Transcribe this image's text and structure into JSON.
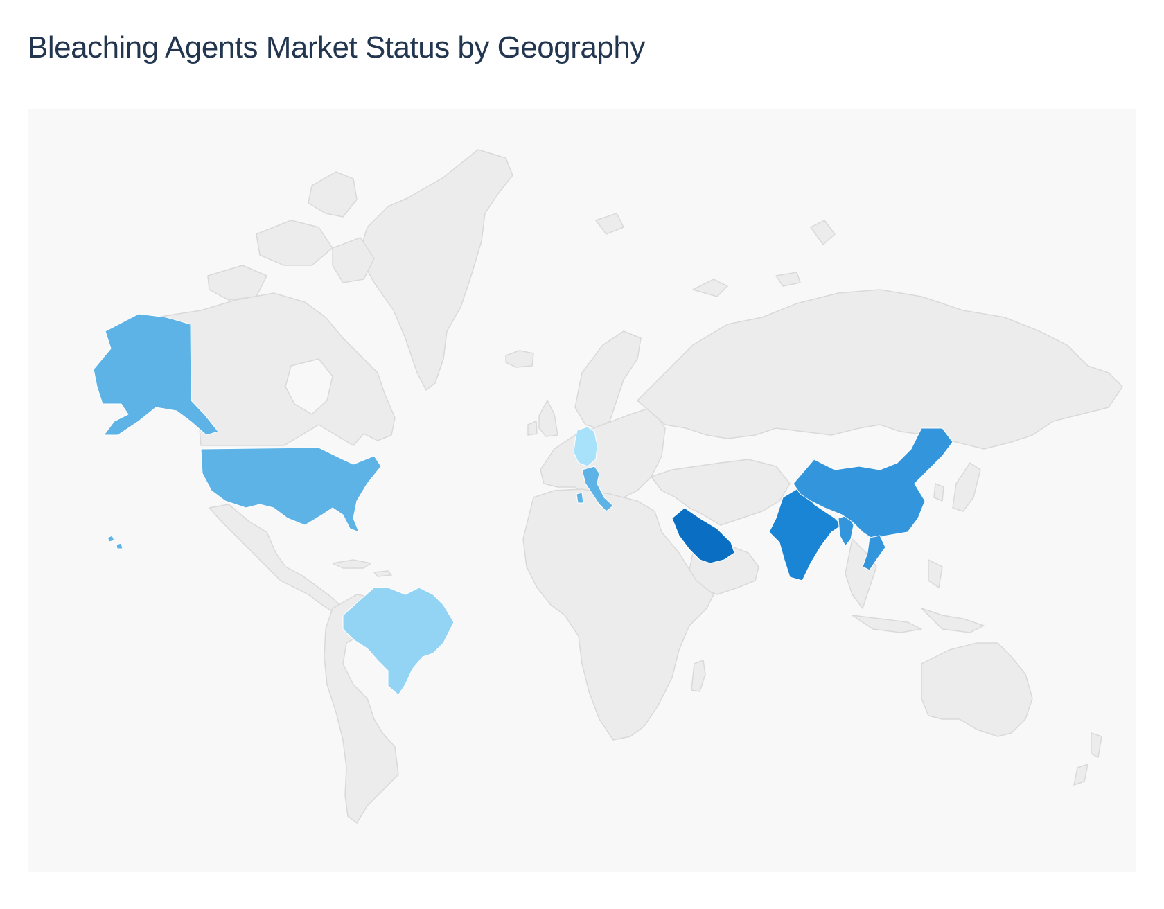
{
  "title": "Bleaching Agents Market Status by Geography",
  "map": {
    "projection": "world",
    "base_fill": "#ececec",
    "background": "#f8f8f8",
    "highlighted_regions": [
      {
        "region": "Saudi Arabia",
        "color": "#0a6fc2"
      },
      {
        "region": "India",
        "color": "#1a85d4"
      },
      {
        "region": "China",
        "color": "#3395dc"
      },
      {
        "region": "Vietnam",
        "color": "#3395dc"
      },
      {
        "region": "Myanmar",
        "color": "#3395dc"
      },
      {
        "region": "United States",
        "color": "#5db3e6"
      },
      {
        "region": "Alaska",
        "color": "#5db3e6"
      },
      {
        "region": "Italy",
        "color": "#5db3e6"
      },
      {
        "region": "Brazil",
        "color": "#93d4f5"
      },
      {
        "region": "Germany",
        "color": "#a7e1fa"
      }
    ]
  }
}
